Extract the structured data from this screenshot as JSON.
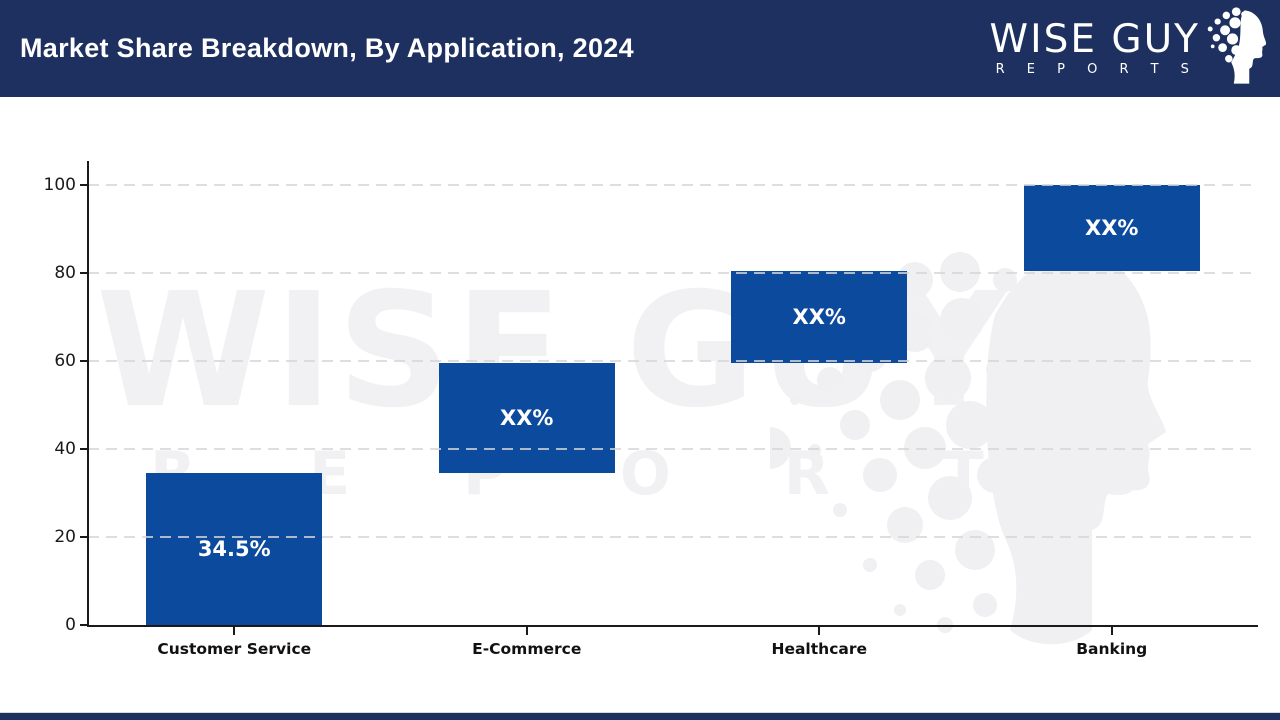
{
  "header": {
    "title": "Market Share Breakdown, By Application, 2024",
    "logo": {
      "name": "WISE GUY",
      "tagline": "R E P O R T S"
    }
  },
  "watermark": {
    "text": "WISE GUY",
    "subtext": "R E P O R T S"
  },
  "chart_data": {
    "type": "bar",
    "subtype": "waterfall",
    "title": "Market Share Breakdown, By Application, 2024",
    "categories": [
      "Customer Service",
      "E-Commerce",
      "Healthcare",
      "Banking"
    ],
    "bars": [
      {
        "category": "Customer Service",
        "label": "34.5%",
        "start": 0,
        "end": 34.5
      },
      {
        "category": "E-Commerce",
        "label": "XX%",
        "start": 34.5,
        "end": 59.5
      },
      {
        "category": "Healthcare",
        "label": "XX%",
        "start": 59.5,
        "end": 80.5
      },
      {
        "category": "Banking",
        "label": "XX%",
        "start": 80.5,
        "end": 100
      }
    ],
    "yticks": [
      0,
      20,
      40,
      60,
      80,
      100
    ],
    "ylim": [
      0,
      105
    ],
    "xlabel": "",
    "ylabel": "",
    "grid": "horizontal-dashed",
    "legend": "none"
  },
  "colors": {
    "header_bg": "#1e3060",
    "footer_bg": "#1e3060",
    "bar": "#0c4a9d",
    "bar_label": "#ffffff",
    "grid": "#d6d6d6",
    "axis": "#1a1a1a",
    "watermark": "#f1f1f3"
  }
}
